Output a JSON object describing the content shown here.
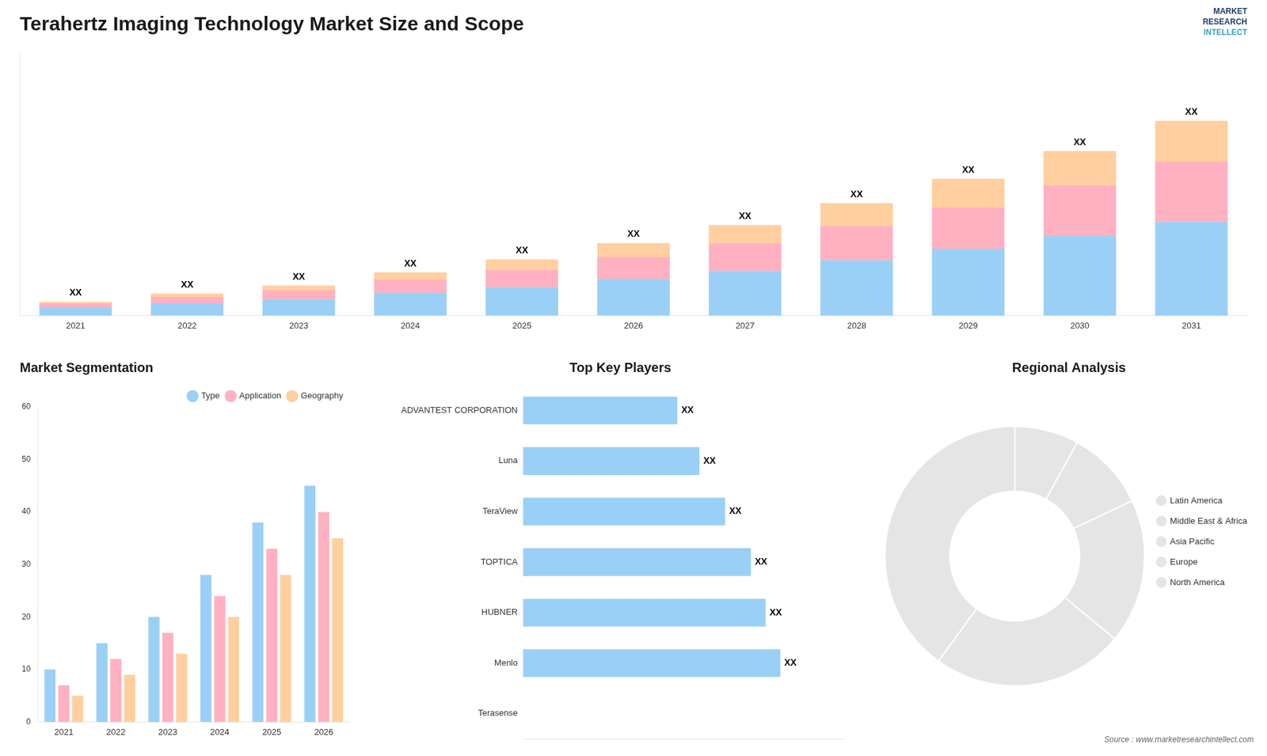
{
  "chart_data": [
    {
      "type": "bar",
      "title": "Terahertz Imaging Technology Market Size and Scope",
      "stacked": true,
      "categories": [
        "2021",
        "2022",
        "2023",
        "2024",
        "2025",
        "2026",
        "2027",
        "2028",
        "2029",
        "2030",
        "2031"
      ],
      "series": [
        {
          "values": [
            1.0,
            1.5,
            2.0,
            2.8,
            3.5,
            4.5,
            5.5,
            6.8,
            8.2,
            9.8,
            11.5
          ]
        },
        {
          "values": [
            0.5,
            0.8,
            1.1,
            1.6,
            2.1,
            2.7,
            3.4,
            4.2,
            5.1,
            6.2,
            7.4
          ]
        },
        {
          "values": [
            0.2,
            0.4,
            0.6,
            0.9,
            1.3,
            1.7,
            2.2,
            2.8,
            3.5,
            4.2,
            5.0
          ]
        }
      ],
      "ylim": [
        0,
        32.265
      ],
      "grid": false,
      "tick_labels": "x",
      "annotations": [
        {
          "text": "XX",
          "category": "2021"
        },
        {
          "text": "XX",
          "category": "2022"
        },
        {
          "text": "XX",
          "category": "2023"
        },
        {
          "text": "XX",
          "category": "2024"
        },
        {
          "text": "XX",
          "category": "2025"
        },
        {
          "text": "XX",
          "category": "2026"
        },
        {
          "text": "XX",
          "category": "2027"
        },
        {
          "text": "XX",
          "category": "2028"
        },
        {
          "text": "XX",
          "category": "2029"
        },
        {
          "text": "XX",
          "category": "2030"
        },
        {
          "text": "XX",
          "category": "2031"
        },
        {
          "text": "MARKET"
        },
        {
          "text": "RESEARCH"
        },
        {
          "text": "INTELLECT"
        }
      ]
    },
    {
      "type": "bar",
      "title": "Market Segmentation",
      "categories": [
        "2021",
        "2022",
        "2023",
        "2024",
        "2025",
        "2026"
      ],
      "series": [
        {
          "name": "Type",
          "values": [
            10,
            15,
            20,
            28,
            38,
            45
          ]
        },
        {
          "name": "Application",
          "values": [
            7,
            12,
            17,
            24,
            33,
            40
          ]
        },
        {
          "name": "Geography",
          "values": [
            5,
            9,
            13,
            20,
            28,
            35
          ]
        }
      ],
      "ylim": [
        0,
        60
      ],
      "yticks": [
        0,
        10,
        20,
        30,
        40,
        50,
        60
      ],
      "grid": false,
      "legend": "top"
    },
    {
      "type": "bar",
      "orientation": "horizontal",
      "title": "Top Key Players",
      "categories": [
        "Terasense",
        "Menlo",
        "HUBNER",
        "TOPTICA",
        "TeraView",
        "Luna",
        "ADVANTEST CORPORATION"
      ],
      "values": [
        0,
        7.0,
        6.6,
        6.2,
        5.5,
        4.8,
        4.2
      ],
      "xlim": [
        0,
        8.75
      ],
      "grid": false,
      "tick_labels": "y",
      "annotations": [
        {
          "text": "XX",
          "category": "Menlo"
        },
        {
          "text": "XX",
          "category": "HUBNER"
        },
        {
          "text": "XX",
          "category": "TOPTICA"
        },
        {
          "text": "XX",
          "category": "TeraView"
        },
        {
          "text": "XX",
          "category": "Luna"
        },
        {
          "text": "XX",
          "category": "ADVANTEST CORPORATION"
        }
      ]
    },
    {
      "type": "donut",
      "title": "Regional Analysis",
      "categories": [
        "Latin America",
        "Middle East &\nAfrica",
        "Asia Pacific",
        "Europe",
        "North America"
      ],
      "values": [
        8,
        10,
        18,
        24,
        40
      ],
      "legend": "right",
      "annotations": [
        "Source : www.marketresearchintellect.com"
      ]
    }
  ]
}
